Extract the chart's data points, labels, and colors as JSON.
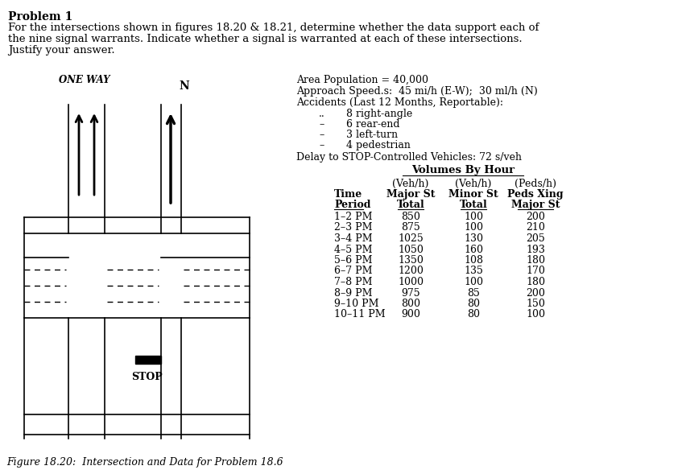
{
  "title": "Problem 1",
  "problem_text_line1": "For the intersections shown in figures 18.20 & 18.21, determine whether the data support each of",
  "problem_text_line2": "the nine signal warrants. Indicate whether a signal is warranted at each of these intersections.",
  "problem_text_line3": "Justify your answer.",
  "figure_label": "Figure 18.20:  Intersection and Data for Problem 18.6",
  "one_way_label": "ONE WAY",
  "north_label": "N",
  "stop_label": "STOP",
  "info_line0": "Area Population = 40,000",
  "info_line1": "Approach Speed.s:  45 mi/h (E-W);  30 ml/h (N)",
  "info_line2": "Accidents (Last 12 Months, Reportable):",
  "info_line7": "Delay to STOP-Controlled Vehicles: 72 s/veh",
  "table_header": "Volumes By Hour",
  "col_headers_row1": [
    "",
    "(Veh/h)",
    "(Veh/h)",
    "(Peds/h)"
  ],
  "col_headers_row2": [
    "Time",
    "Major St",
    "Minor St",
    "Peds Xing"
  ],
  "col_headers_row3": [
    "Period",
    "Total",
    "Total",
    "Major St"
  ],
  "time_periods": [
    "1–2 PM",
    "2–3 PM",
    "3–4 PM",
    "4–5 PM",
    "5–6 PM",
    "6–7 PM",
    "7–8 PM",
    "8–9 PM",
    "9–10 PM",
    "10–11 PM"
  ],
  "major_st": [
    850,
    875,
    1025,
    1050,
    1350,
    1200,
    1000,
    975,
    800,
    900
  ],
  "minor_st": [
    100,
    100,
    130,
    160,
    108,
    135,
    100,
    85,
    80,
    80
  ],
  "peds_xing": [
    200,
    210,
    205,
    193,
    180,
    170,
    180,
    200,
    150,
    100
  ],
  "accident_bullets": [
    "..",
    "–",
    "–",
    "–"
  ],
  "accident_items": [
    "8 right-angle",
    "6 rear-end",
    "3 left-turn",
    "4 pedestrian"
  ],
  "bg_color": "#ffffff",
  "text_color": "#000000",
  "lw_road": 1.2,
  "fig_width": 8.52,
  "fig_height": 5.89,
  "dpi": 100
}
